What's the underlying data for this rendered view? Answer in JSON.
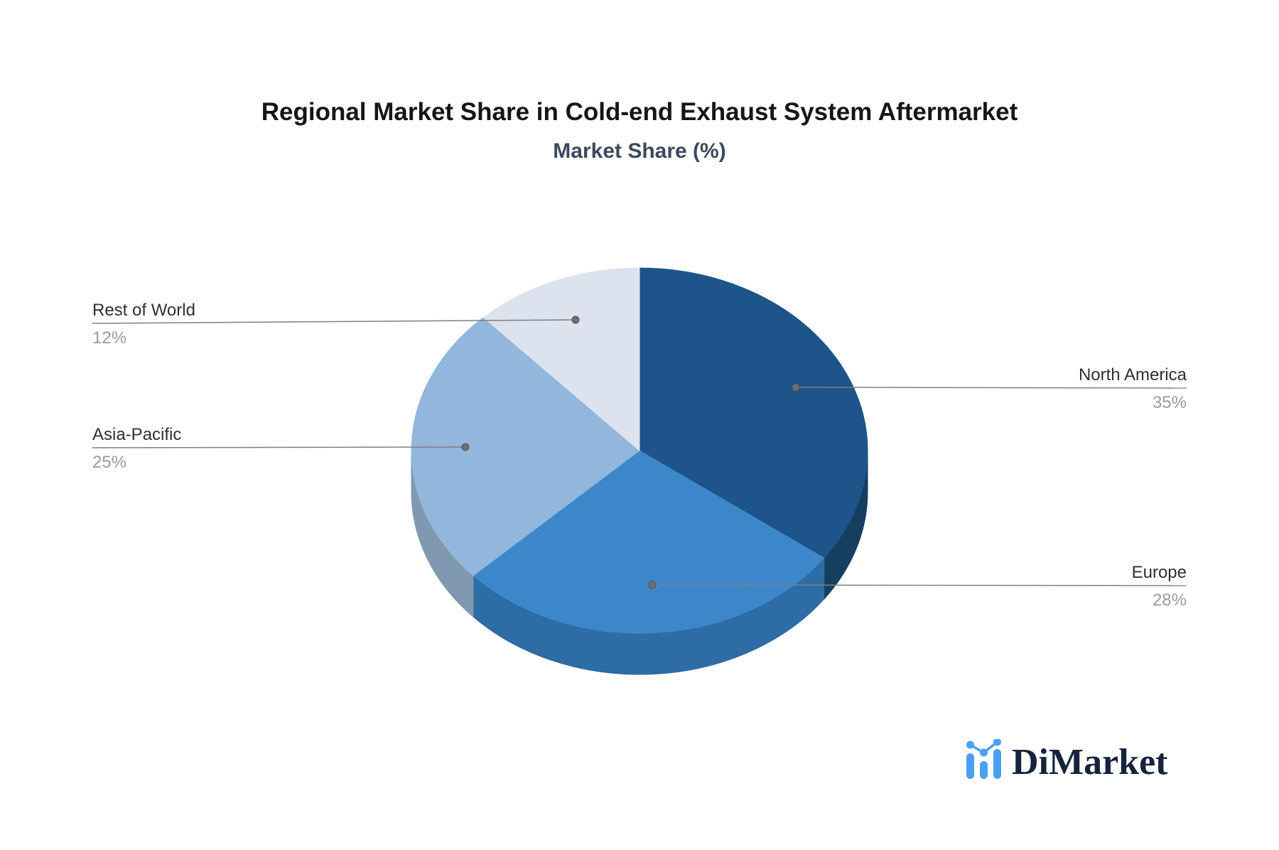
{
  "header": {
    "title": "Regional Market Share in Cold-end Exhaust System Aftermarket",
    "subtitle": "Market Share (%)"
  },
  "chart_data": {
    "type": "pie",
    "style": "3d",
    "title": "Regional Market Share in Cold-end Exhaust System Aftermarket",
    "subtitle": "Market Share (%)",
    "unit": "%",
    "direction": "clockwise",
    "start_angle_deg": 0,
    "legend": "none",
    "data_labels": "leader-lines",
    "slices": [
      {
        "label": "North America",
        "value": 35,
        "display": "35%",
        "color": "#1d5489",
        "side_color": "#153e61"
      },
      {
        "label": "Europe",
        "value": 28,
        "display": "28%",
        "color": "#3c87ca",
        "side_color": "#2e6ca5"
      },
      {
        "label": "Asia-Pacific",
        "value": 25,
        "display": "25%",
        "color": "#93b6dc",
        "side_color": "#8099b0"
      },
      {
        "label": "Rest of World",
        "value": 12,
        "display": "12%",
        "color": "#dce3ee",
        "side_color": "#c3cddd"
      }
    ]
  },
  "label_style": {
    "name_color": "#303030",
    "value_color": "#9b9b9b",
    "line_color": "#7f7f7f",
    "dot_color": "#6f6f6f"
  },
  "branding": {
    "logo_text": "DiMarket",
    "logo_text_color": "#16233c",
    "icon": "bar-chart-trend-icon",
    "icon_color": "#4aa0f2"
  }
}
